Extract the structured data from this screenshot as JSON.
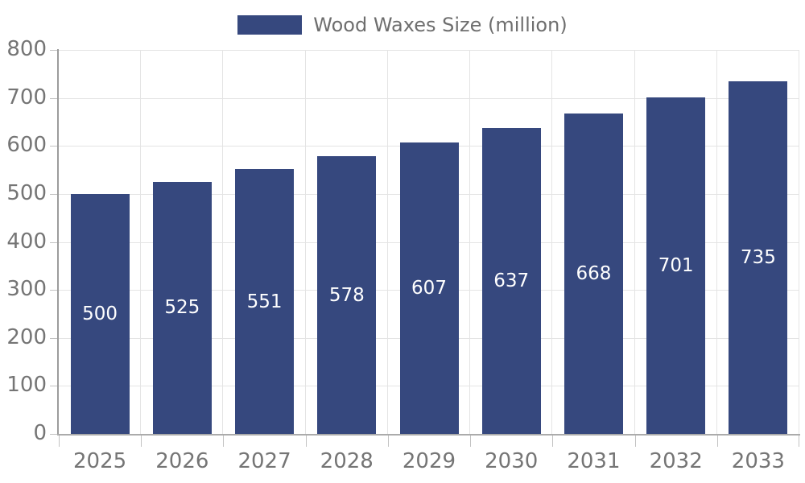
{
  "chart_data": {
    "type": "bar",
    "title": "Wood Waxes Size (million)",
    "series": [
      {
        "name": "Wood Waxes Size (million)",
        "values": [
          500,
          525,
          551,
          578,
          607,
          637,
          668,
          701,
          735
        ]
      }
    ],
    "categories": [
      "2025",
      "2026",
      "2027",
      "2028",
      "2029",
      "2030",
      "2031",
      "2032",
      "2033"
    ],
    "value_labels": [
      "500",
      "525",
      "551",
      "578",
      "607",
      "637",
      "668",
      "701",
      "735"
    ],
    "xlabel": "",
    "ylabel": "",
    "ylim": [
      0,
      800
    ],
    "ytick_step": 100,
    "ytick_labels": [
      "0",
      "100",
      "200",
      "300",
      "400",
      "500",
      "600",
      "700",
      "800"
    ],
    "grid": true,
    "legend_position": "top-center",
    "colors": {
      "bar": "#36487E",
      "bar_value_text": "#ffffff",
      "axis_text": "#757575",
      "legend_text": "#6e6e6e",
      "gridline": "#e4e4e4",
      "axis_line": "#9c9c9c",
      "tick_mark": "#c2c2c2",
      "background": "#ffffff"
    }
  }
}
